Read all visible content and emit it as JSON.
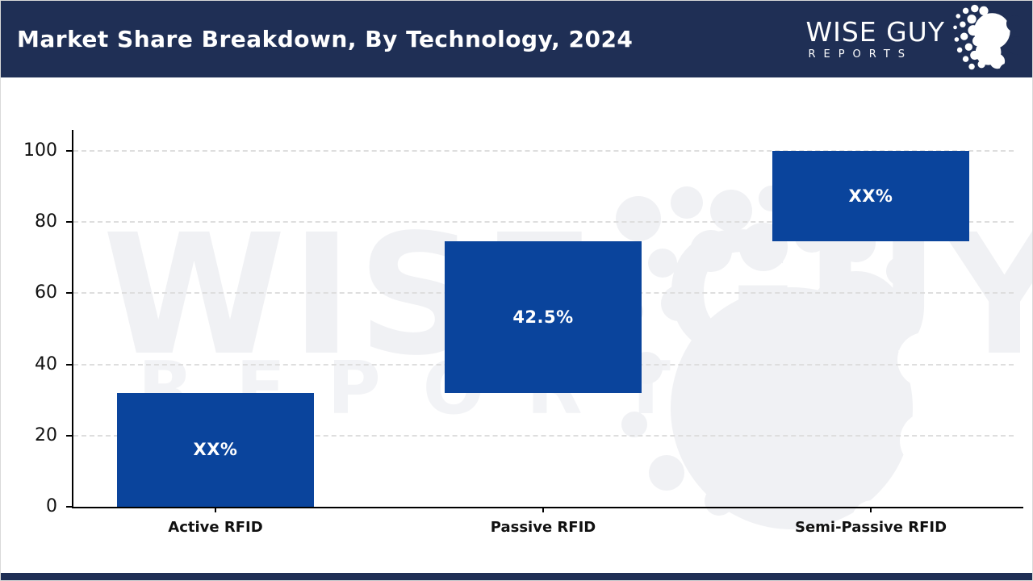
{
  "header": {
    "title": "Market Share Breakdown, By Technology, 2024",
    "brand": {
      "name": "WISE GUY",
      "sub": "REPORTS"
    }
  },
  "watermark": {
    "line1": "WISE GUY",
    "line2": "REPORTS"
  },
  "chart_data": {
    "type": "bar",
    "subtype": "floating-waterfall",
    "title": "Market Share Breakdown, By Technology, 2024",
    "categories": [
      "Active RFID",
      "Passive RFID",
      "Semi-Passive RFID"
    ],
    "series": [
      {
        "name": "Market Share (%)",
        "segments": [
          {
            "category": "Active RFID",
            "start": 0,
            "end": 32,
            "label": "XX%"
          },
          {
            "category": "Passive RFID",
            "start": 32,
            "end": 74.5,
            "label": "42.5%"
          },
          {
            "category": "Semi-Passive RFID",
            "start": 74.5,
            "end": 100,
            "label": "XX%"
          }
        ]
      }
    ],
    "xlabel": "",
    "ylabel": "",
    "ylim": [
      0,
      100
    ],
    "yticks": [
      0,
      20,
      40,
      60,
      80,
      100
    ],
    "grid": "horizontal-dashed",
    "legend": "none",
    "bar_color": "#0a449c",
    "bar_label_color": "#ffffff"
  },
  "colors": {
    "header_bg": "#1f2f55",
    "footer_bg": "#1f2f55",
    "bar": "#0a449c",
    "gridline": "#dedede",
    "axis": "#000000",
    "watermark": "#f0f1f4"
  }
}
